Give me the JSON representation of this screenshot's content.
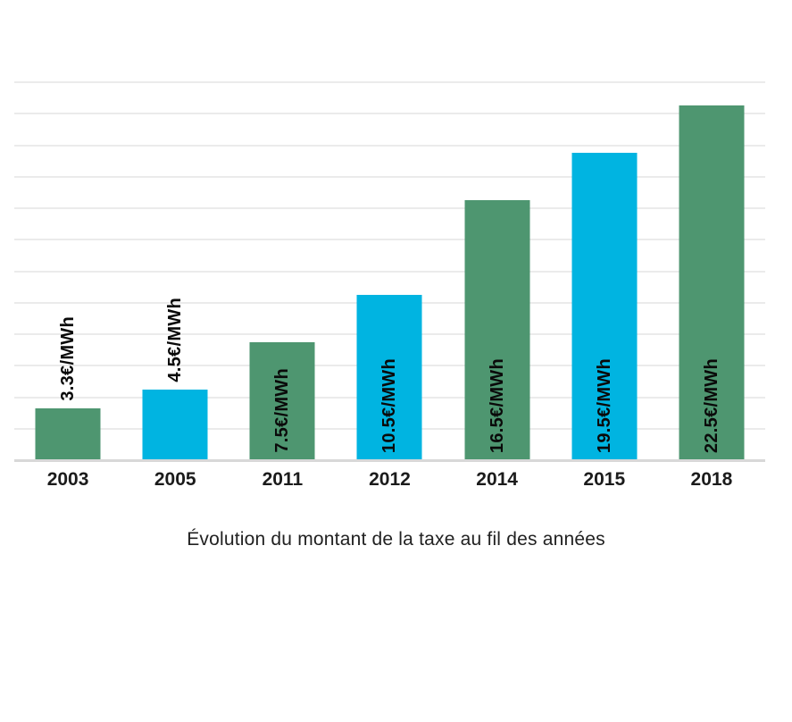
{
  "page": {
    "background_color": "#ffffff"
  },
  "chart_data": {
    "type": "bar",
    "title": "Évolution du montant de la taxe au fil des années",
    "categories": [
      "2003",
      "2005",
      "2011",
      "2012",
      "2014",
      "2015",
      "2018"
    ],
    "values": [
      3.3,
      4.5,
      7.5,
      10.5,
      16.5,
      19.5,
      22.5
    ],
    "bar_labels": [
      "3.3€/MWh",
      "4.5€/MWh",
      "7.5€/MWh",
      "10.5€/MWh",
      "16.5€/MWh",
      "19.5€/MWh",
      "22.5€/MWh"
    ],
    "bar_colors": [
      "#4e9670",
      "#00b4e1",
      "#4e9670",
      "#00b4e1",
      "#4e9670",
      "#00b4e1",
      "#4e9670"
    ],
    "palette": {
      "green": "#4e9670",
      "cyan": "#00b4e1",
      "gridline": "#ebebeb",
      "axis_line": "#d8d8d8",
      "label_text": "#0a0a0a"
    },
    "xlabel": "",
    "ylabel": "",
    "ylim": [
      0,
      24
    ],
    "gridline_step": 2,
    "grid": true,
    "legend_position": "none",
    "y_tick_labels_visible": false,
    "value_label_rotation_deg": -90
  }
}
